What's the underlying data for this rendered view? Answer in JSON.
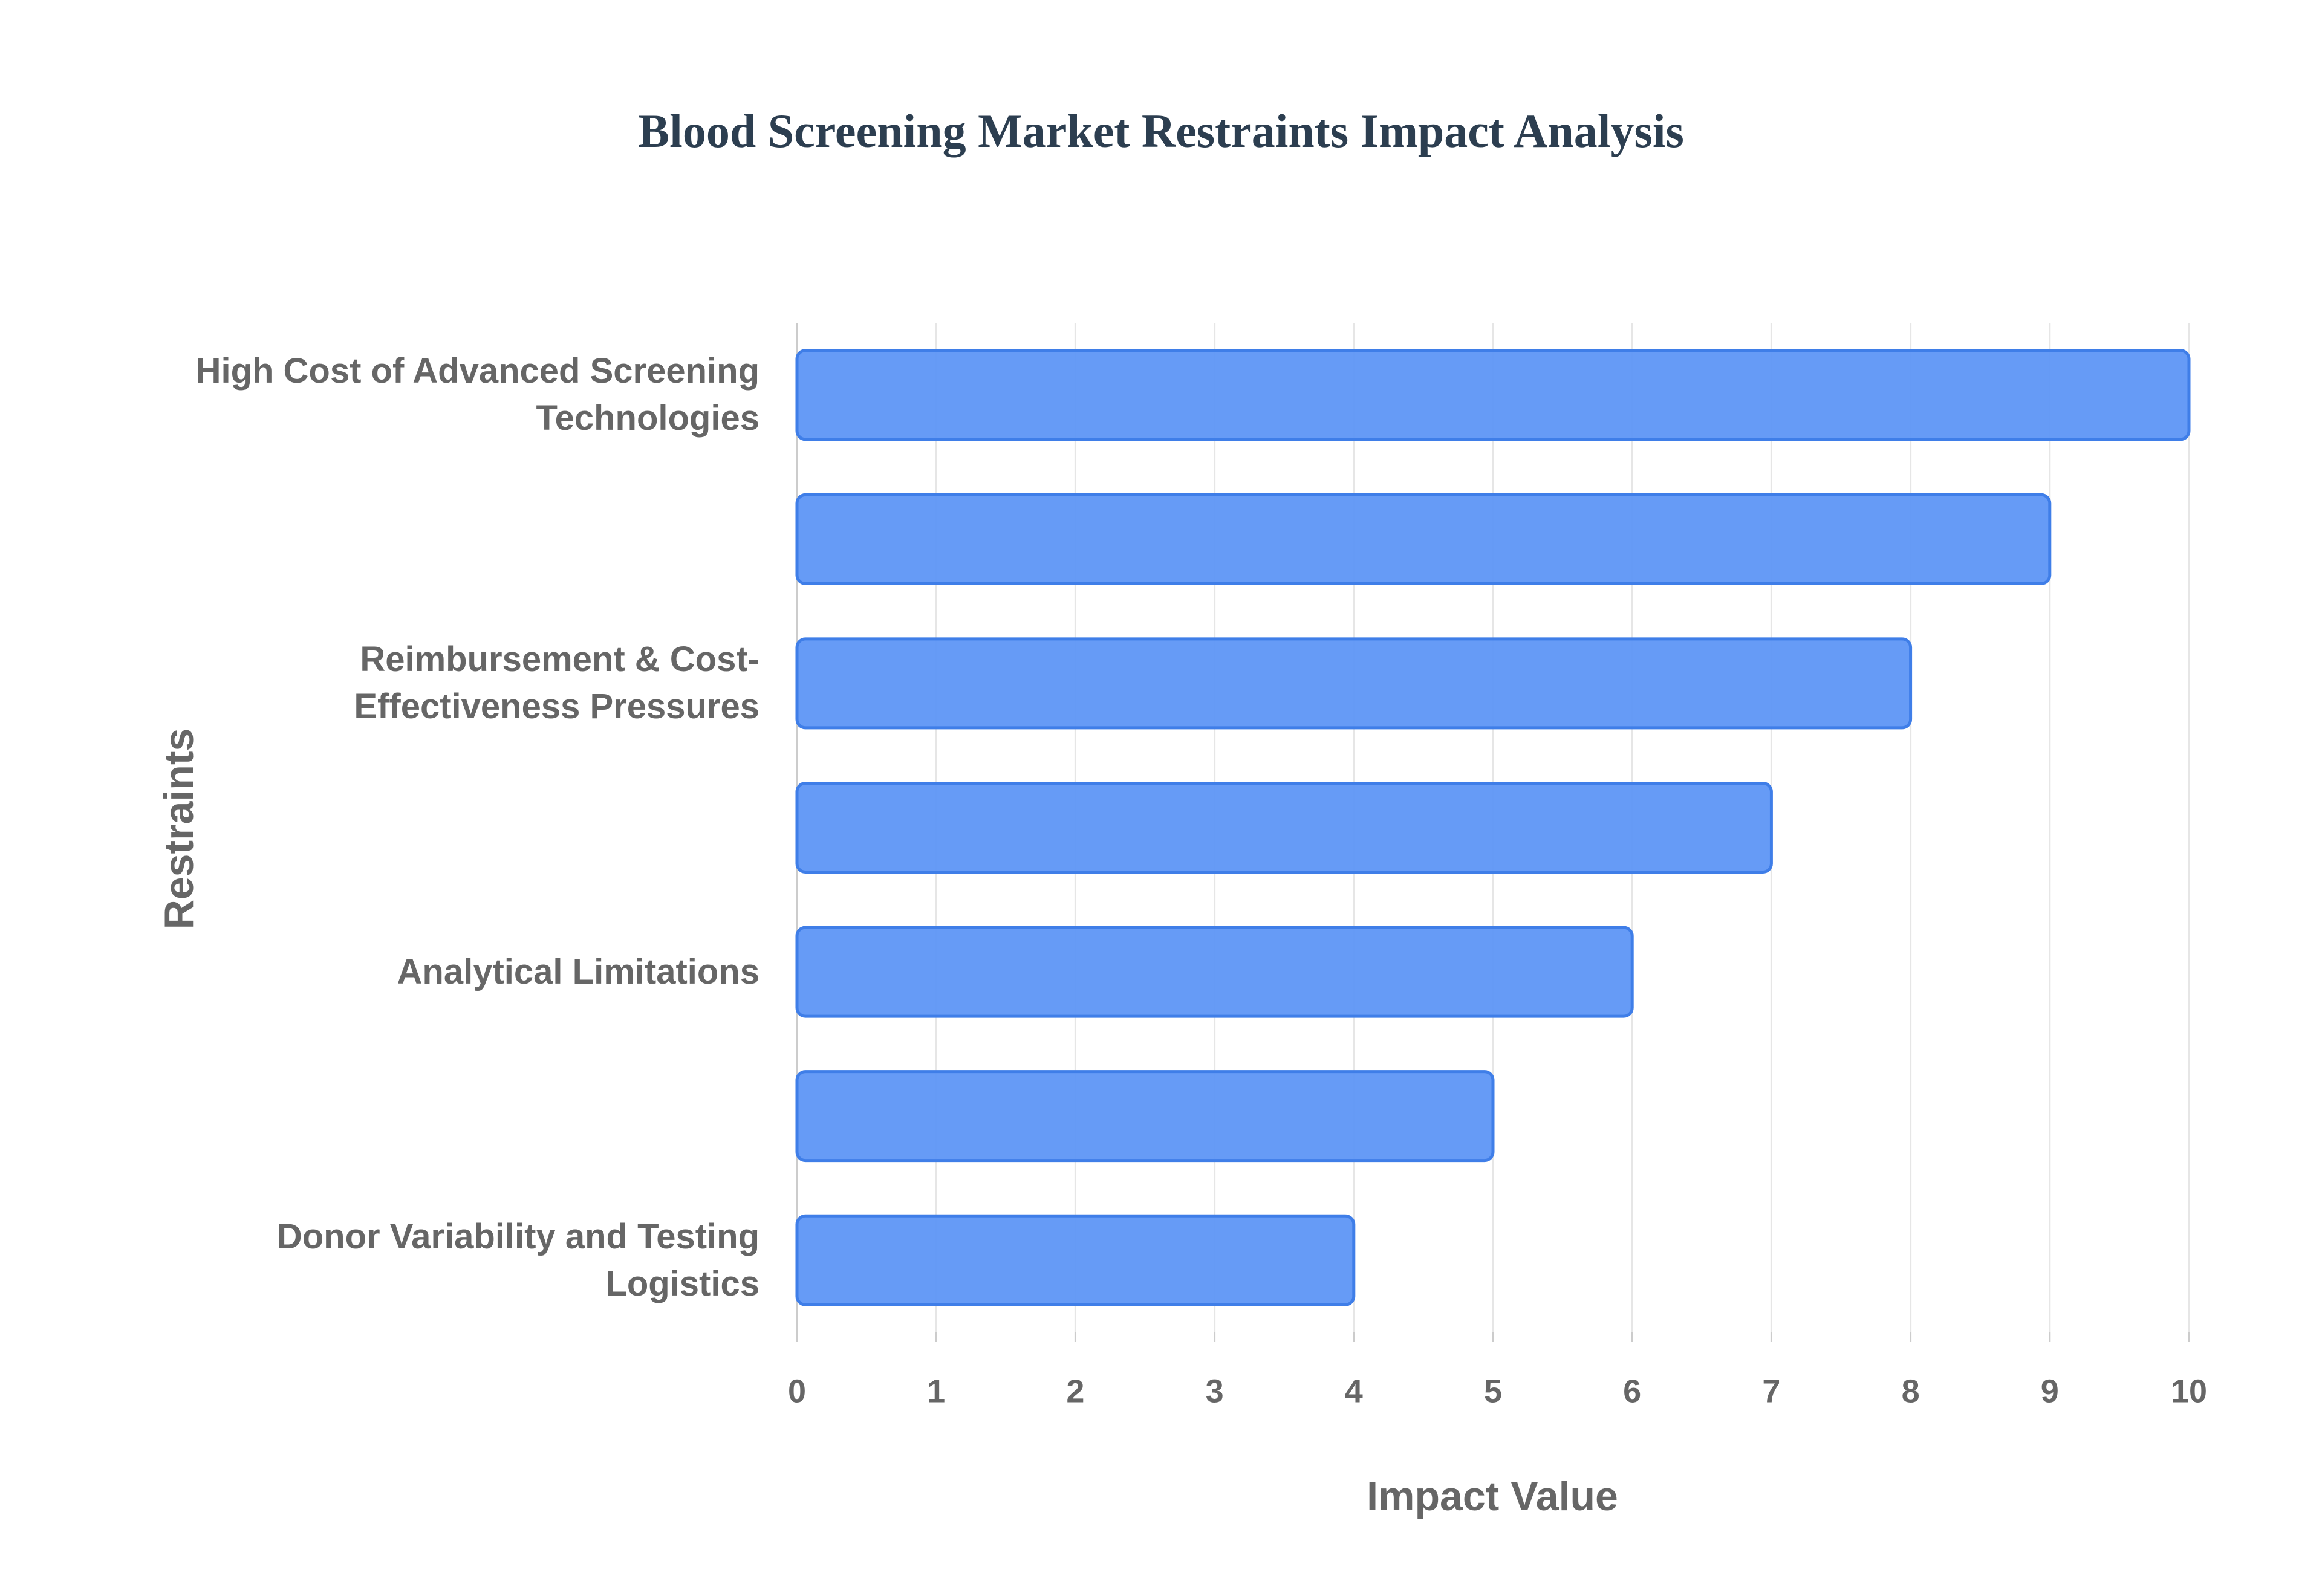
{
  "chart_data": {
    "type": "bar",
    "orientation": "horizontal",
    "title": "Blood Screening Market Restraints Impact Analysis",
    "x_label": "Impact Value",
    "y_label": "Restraints",
    "categories": [
      "High Cost of Advanced Screening Technologies",
      null,
      "Reimbursement & Cost-Effectiveness Pressures",
      null,
      "Analytical Limitations",
      null,
      "Donor Variability and Testing Logistics"
    ],
    "values": [
      10,
      9,
      8,
      7,
      6,
      5,
      4
    ],
    "color": "#5e96f6",
    "xlim": [
      0,
      10
    ],
    "xticks": [
      0,
      1,
      2,
      3,
      4,
      5,
      6,
      7,
      8,
      9,
      10
    ],
    "grid": true
  }
}
